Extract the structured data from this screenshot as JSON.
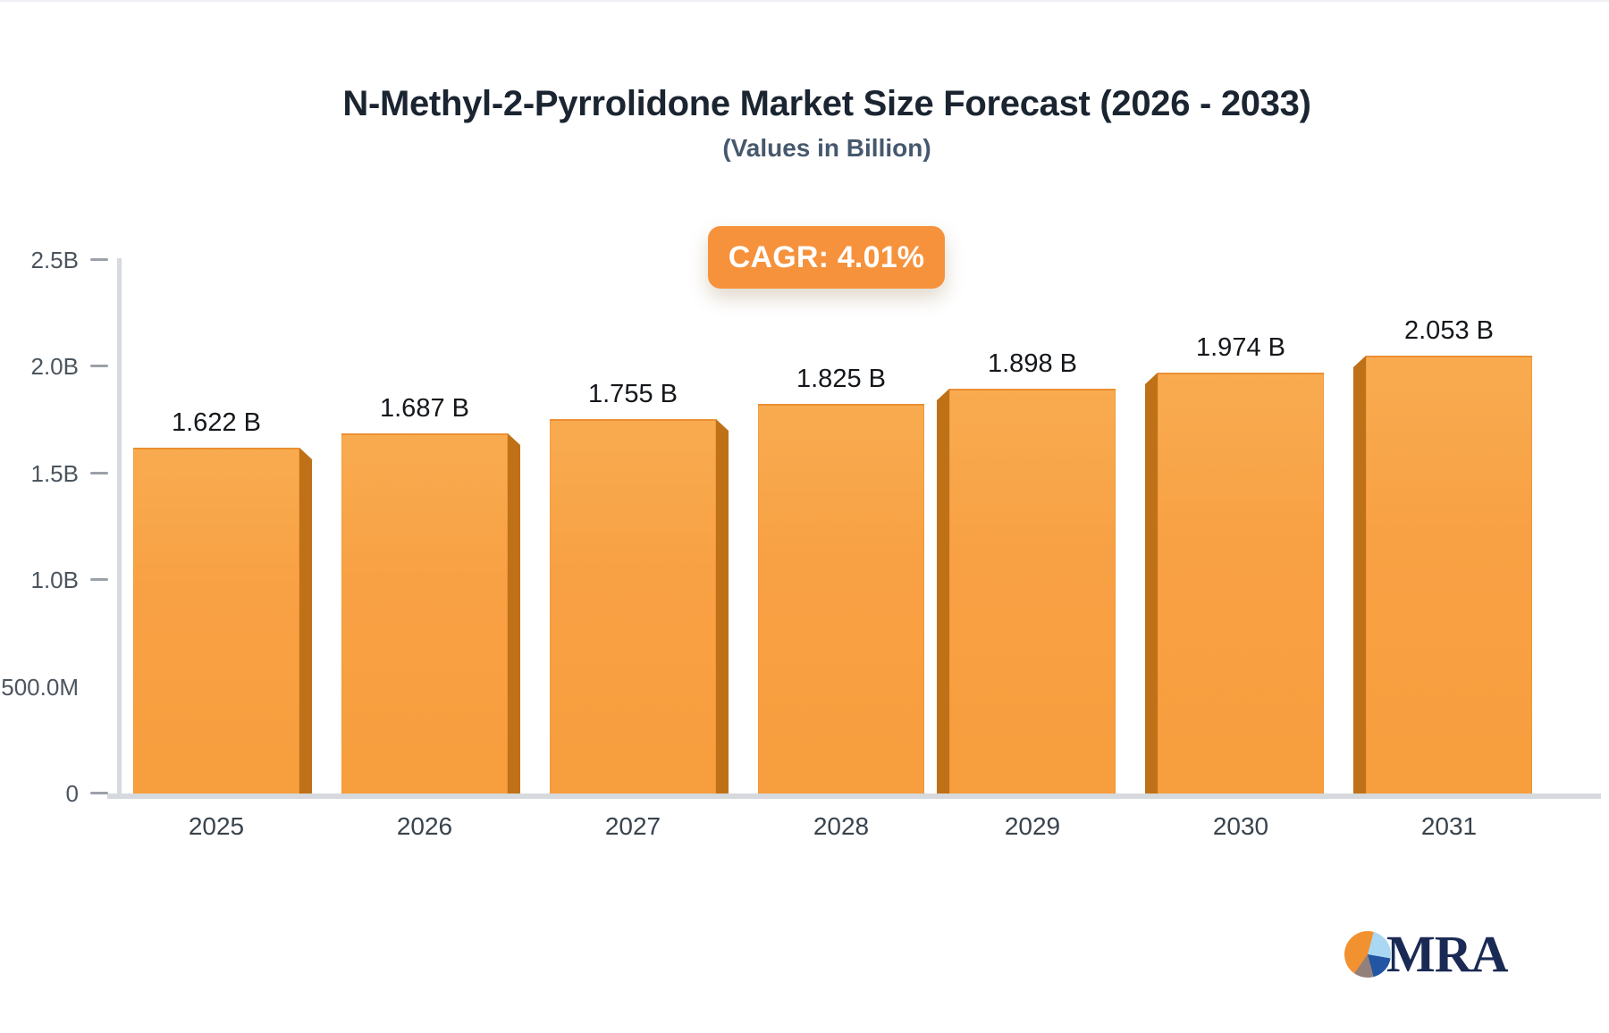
{
  "header": {
    "title": "N-Methyl-2-Pyrrolidone Market Size Forecast (2026 - 2033)",
    "subtitle": "(Values in Billion)",
    "cagr_badge": "CAGR: 4.01%"
  },
  "chart_data": {
    "type": "bar",
    "title": "N-Methyl-2-Pyrrolidone Market Size Forecast (2026 - 2033)",
    "subtitle": "(Values in Billion)",
    "cagr_label": "CAGR: 4.01%",
    "categories": [
      "2025",
      "2026",
      "2027",
      "2028",
      "2029",
      "2030",
      "2031"
    ],
    "values": [
      1.622,
      1.687,
      1.755,
      1.825,
      1.898,
      1.974,
      2.053
    ],
    "value_labels": [
      "1.622 B",
      "1.687 B",
      "1.755 B",
      "1.825 B",
      "1.898 B",
      "1.974 B",
      "2.053 B"
    ],
    "xlabel": "",
    "ylabel": "",
    "ylim": [
      0,
      2.5
    ],
    "yticks": [
      {
        "label": "2.5B",
        "value": 2.5,
        "has_tick": true
      },
      {
        "label": "2.0B",
        "value": 2.0,
        "has_tick": true
      },
      {
        "label": "1.5B",
        "value": 1.5,
        "has_tick": true
      },
      {
        "label": "1.0B",
        "value": 1.0,
        "has_tick": true
      },
      {
        "label": "500.0M",
        "value": 0.5,
        "has_tick": false
      },
      {
        "label": "0",
        "value": 0.0,
        "has_tick": true
      }
    ],
    "grid": false,
    "legend": false,
    "bar_color": "#f8a144",
    "bar_side_color": "#bf7118",
    "badge_color": "#f6923c",
    "axis_color": "#d6d9de",
    "value_label_color": "#14171b",
    "tick_label_color": "#4b555f"
  },
  "logo": {
    "text": "MRA",
    "pie_colors": [
      "#f29130",
      "#aad8f2",
      "#2256a3",
      "#93807a"
    ]
  }
}
